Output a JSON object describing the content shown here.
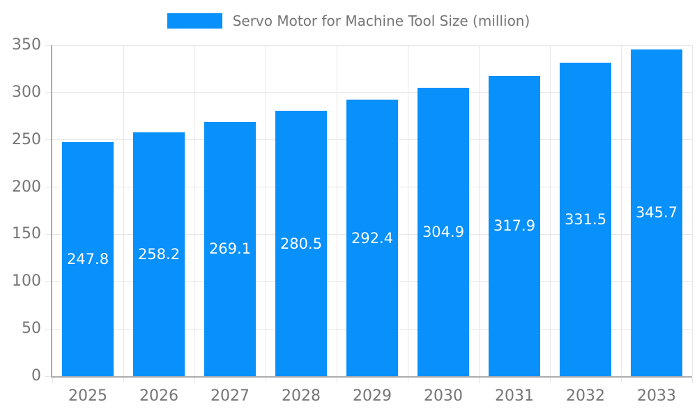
{
  "chart_data": {
    "type": "bar",
    "title": "Servo Motor for Machine Tool Size (million)",
    "series_name": "Servo Motor for Machine Tool Size (million)",
    "categories": [
      "2025",
      "2026",
      "2027",
      "2028",
      "2029",
      "2030",
      "2031",
      "2032",
      "2033"
    ],
    "values": [
      247.8,
      258.2,
      269.1,
      280.5,
      292.4,
      304.9,
      317.9,
      331.5,
      345.7
    ],
    "xlabel": "",
    "ylabel": "",
    "ylim": [
      0,
      350
    ],
    "yticks": [
      0,
      50,
      100,
      150,
      200,
      250,
      300,
      350
    ],
    "grid": true,
    "legend_position": "top",
    "value_labels": "inside-center",
    "colors": {
      "bar": "#0890FB",
      "grid": "#E6E6E6",
      "axis_line": "#ACACAC",
      "text": "#757575",
      "value_label": "#FFFFFF",
      "background": "#FFFFFF"
    }
  }
}
